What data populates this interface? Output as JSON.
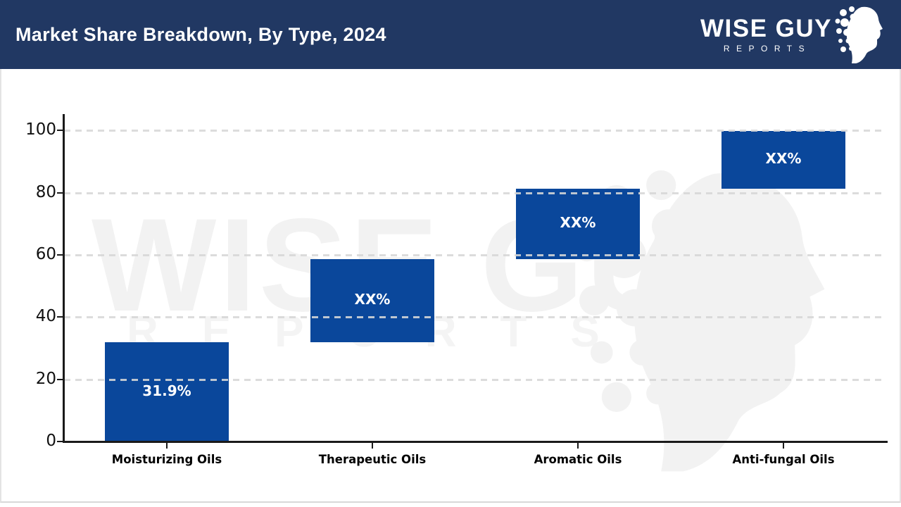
{
  "header": {
    "title": "Market Share Breakdown, By Type, 2024",
    "logo": {
      "name": "WISE GUY",
      "tagline": "REPORTS"
    }
  },
  "watermark": {
    "line1": "WISE GUY",
    "line2": "REPORTS"
  },
  "chart_data": {
    "type": "bar",
    "subtype": "waterfall",
    "title": "Market Share Breakdown, By Type, 2024",
    "categories": [
      "Moisturizing Oils",
      "Therapeutic Oils",
      "Aromatic Oils",
      "Anti-fungal Oils"
    ],
    "bars": [
      {
        "category": "Moisturizing Oils",
        "start": 0,
        "end": 31.9,
        "label": "31.9%"
      },
      {
        "category": "Therapeutic Oils",
        "start": 31.9,
        "end": 58.6,
        "label": "XX%"
      },
      {
        "category": "Aromatic Oils",
        "start": 58.6,
        "end": 81.3,
        "label": "XX%"
      },
      {
        "category": "Anti-fungal Oils",
        "start": 81.3,
        "end": 99.8,
        "label": "XX%"
      }
    ],
    "xlabel": "",
    "ylabel": "",
    "yticks": [
      0,
      20,
      40,
      60,
      80,
      100
    ],
    "ylim": [
      0,
      105
    ],
    "grid": "horizontal-dashed",
    "legend": "none",
    "colors": {
      "bar": "#0A479B",
      "bar_label": "#ffffff",
      "axis": "#1a1a1a",
      "gridline": "#d7d7d7",
      "header_background": "#213863",
      "header_text": "#ffffff",
      "watermark": "#f2f2f2"
    }
  }
}
